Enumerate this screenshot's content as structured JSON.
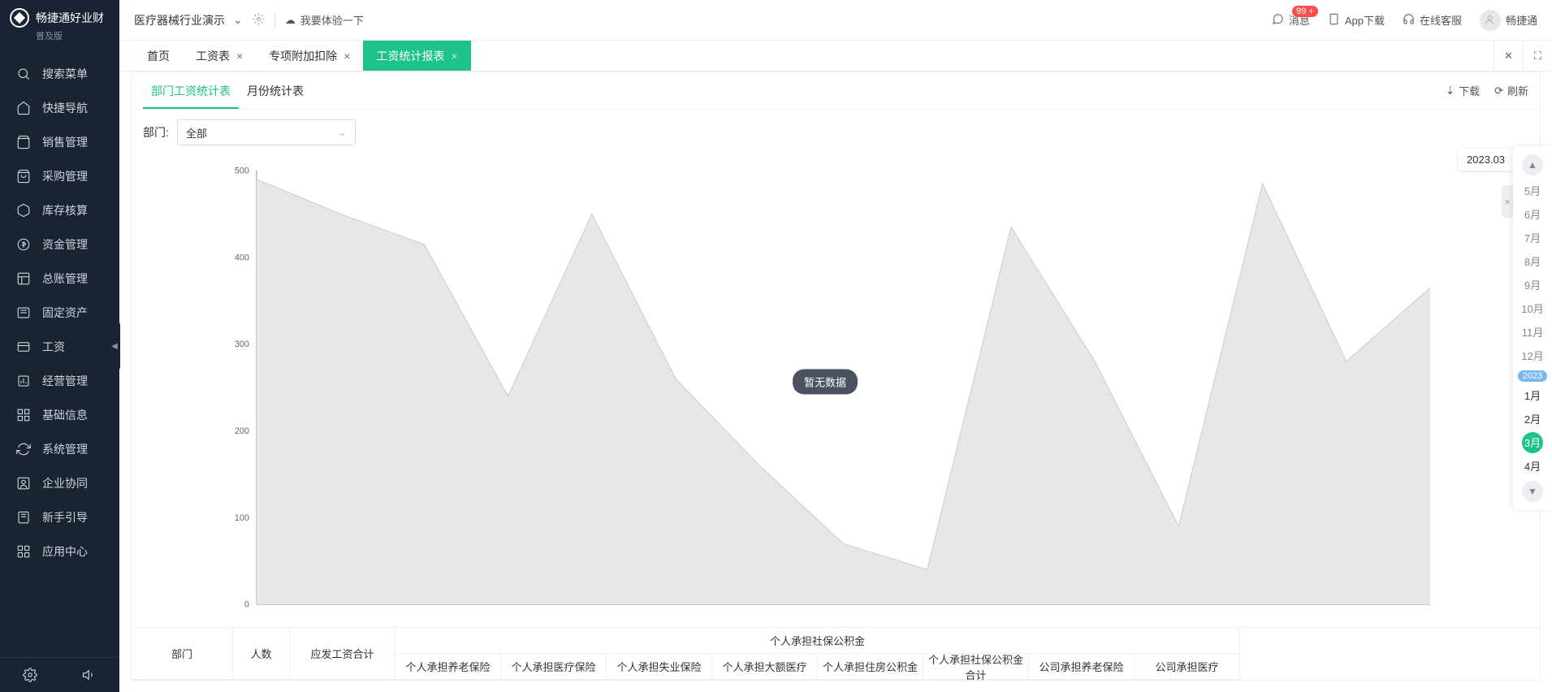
{
  "brand": {
    "name": "畅捷通好业财",
    "edition": "普及版"
  },
  "sidebar": {
    "items": [
      {
        "label": "搜索菜单",
        "icon": "search"
      },
      {
        "label": "快捷导航",
        "icon": "home"
      },
      {
        "label": "销售管理",
        "icon": "cart"
      },
      {
        "label": "采购管理",
        "icon": "bag"
      },
      {
        "label": "库存核算",
        "icon": "box"
      },
      {
        "label": "资金管理",
        "icon": "wallet"
      },
      {
        "label": "总账管理",
        "icon": "ledger"
      },
      {
        "label": "固定资产",
        "icon": "asset"
      },
      {
        "label": "工资",
        "icon": "salary"
      },
      {
        "label": "经营管理",
        "icon": "report"
      },
      {
        "label": "基础信息",
        "icon": "grid"
      },
      {
        "label": "系统管理",
        "icon": "sync"
      },
      {
        "label": "企业协同",
        "icon": "collab"
      },
      {
        "label": "新手引导",
        "icon": "guide"
      },
      {
        "label": "应用中心",
        "icon": "apps"
      }
    ]
  },
  "topbar": {
    "org": "医疗器械行业演示",
    "try": "我要体验一下",
    "msg": "消息",
    "msg_badge": "99 +",
    "app": "App下载",
    "support": "在线客服",
    "user": "畅捷通"
  },
  "tabs": {
    "items": [
      {
        "label": "首页",
        "closable": false,
        "active": false
      },
      {
        "label": "工资表",
        "closable": true,
        "active": false
      },
      {
        "label": "专项附加扣除",
        "closable": true,
        "active": false
      },
      {
        "label": "工资统计报表",
        "closable": true,
        "active": true
      }
    ]
  },
  "sub_tabs": {
    "items": [
      {
        "label": "部门工资统计表",
        "active": true
      },
      {
        "label": "月份统计表",
        "active": false
      }
    ],
    "download": "下载",
    "refresh": "刷新"
  },
  "filter": {
    "label": "部门:",
    "value": "全部"
  },
  "chart": {
    "type": "area",
    "ylim": [
      0,
      500
    ],
    "ytick_step": 100,
    "yticks": [
      "0",
      "100",
      "200",
      "300",
      "400",
      "500"
    ],
    "values": [
      490,
      450,
      415,
      240,
      450,
      260,
      160,
      70,
      40,
      435,
      280,
      90,
      485,
      280,
      365
    ],
    "fill_color": "#e7e7e7",
    "stroke_color": "#c8c8c8",
    "axis_color": "#888888",
    "text_color": "#666666",
    "no_data": "暂无数据",
    "no_data_bg": "#4a5260"
  },
  "table": {
    "cols_fixed": [
      "部门",
      "人数",
      "应发工资合计"
    ],
    "group_header": "个人承担社保公积金",
    "group_cols": [
      "个人承担养老保险",
      "个人承担医疗保险",
      "个人承担失业保险",
      "个人承担大额医疗",
      "个人承担住房公积金",
      "个人承担社保公积金合计",
      "公司承担养老保险",
      "公司承担医疗"
    ],
    "widths_fixed": [
      125,
      70,
      130
    ],
    "width_group_col": 130
  },
  "month_rail": {
    "date": "2023.03",
    "year_badge": "2023",
    "months_gray": [
      "5月",
      "6月",
      "7月",
      "8月",
      "9月",
      "10月",
      "11月",
      "12月"
    ],
    "months_current": [
      "1月",
      "2月",
      "3月",
      "4月"
    ],
    "active": "3月"
  }
}
